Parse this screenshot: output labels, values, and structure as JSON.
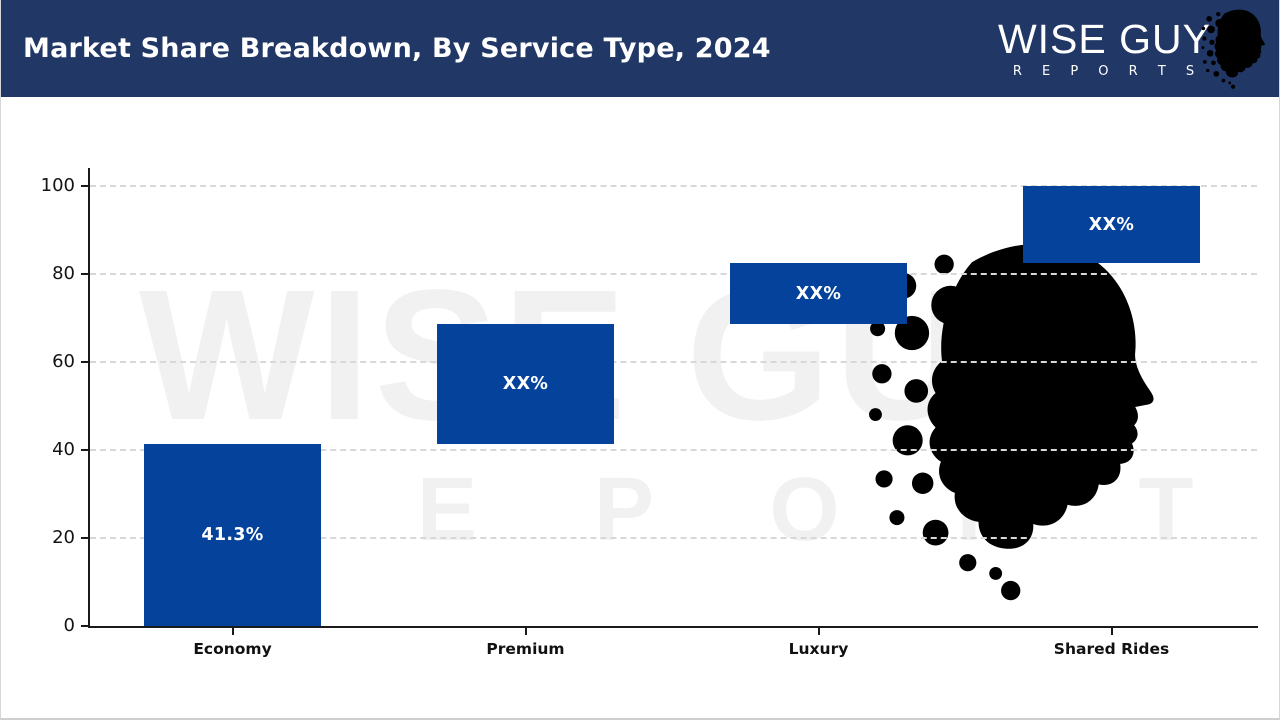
{
  "header": {
    "title": "Market Share Breakdown, By Service Type, 2024",
    "logo": {
      "line1": "WISE GUY",
      "line2": "R E P O R T S"
    }
  },
  "watermark": {
    "line1": "WISE GUY",
    "line2": "R E P O R T S"
  },
  "chart_data": {
    "type": "waterfall",
    "title": "Market Share Breakdown, By Service Type, 2024",
    "categories": [
      "Economy",
      "Premium",
      "Luxury",
      "Shared Rides"
    ],
    "segments": [
      {
        "category": "Economy",
        "start": 0,
        "end": 41.3,
        "label": "41.3%"
      },
      {
        "category": "Premium",
        "start": 41.3,
        "end": 68.6,
        "label": "XX%"
      },
      {
        "category": "Luxury",
        "start": 68.6,
        "end": 82.5,
        "label": "XX%"
      },
      {
        "category": "Shared Rides",
        "start": 82.5,
        "end": 100,
        "label": "XX%"
      }
    ],
    "values_estimated": [
      41.3,
      27.3,
      13.9,
      17.5
    ],
    "xlabel": "",
    "ylabel": "",
    "ylim": [
      0,
      100
    ],
    "yticks": [
      0,
      20,
      40,
      60,
      80,
      100
    ],
    "grid": "dashed-horizontal",
    "legend": "none",
    "bar_color": "#04429c",
    "bar_label_color": "#ffffff"
  },
  "colors": {
    "header_bg": "#213765",
    "bar": "#04429c",
    "grid": "#d8d8d8",
    "axis": "#1a1a1a",
    "watermark": "#f1f1f2"
  }
}
